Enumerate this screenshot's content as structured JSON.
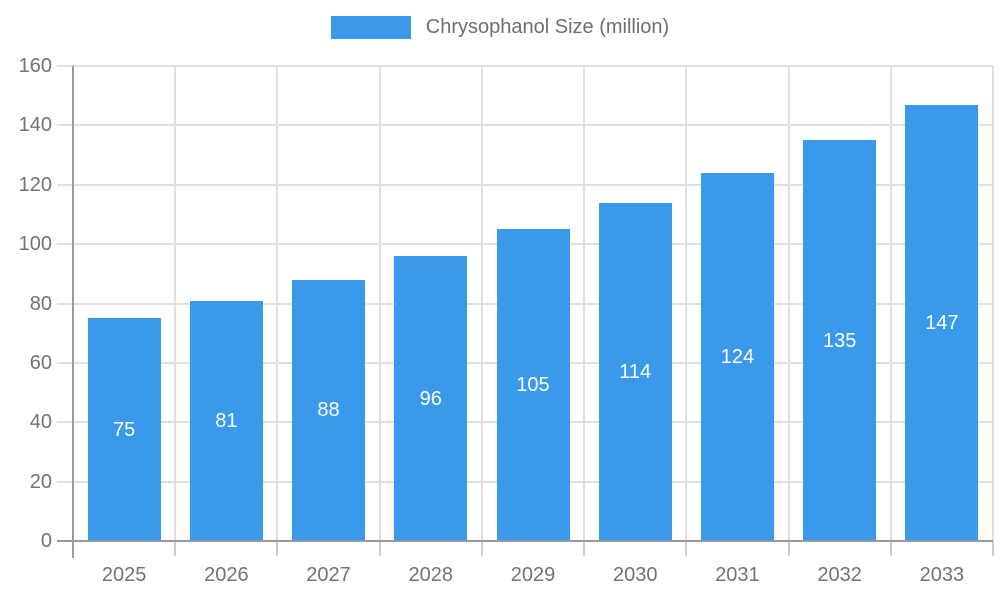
{
  "legend": {
    "label": "Chrysophanol Size (million)"
  },
  "chart_data": {
    "type": "bar",
    "title": "",
    "categories": [
      "2025",
      "2026",
      "2027",
      "2028",
      "2029",
      "2030",
      "2031",
      "2032",
      "2033"
    ],
    "series": [
      {
        "name": "Chrysophanol Size (million)",
        "color": "#3B99EC",
        "values": [
          75,
          81,
          88,
          96,
          105,
          114,
          124,
          135,
          147
        ]
      }
    ],
    "value_labels": [
      75,
      81,
      88,
      96,
      105,
      114,
      124,
      135,
      147
    ],
    "y_ticks": [
      0,
      20,
      40,
      60,
      80,
      100,
      120,
      140,
      160
    ],
    "ylim": [
      0,
      160
    ],
    "xlabel": "",
    "ylabel": "",
    "grid": true,
    "legend_position": "top",
    "value_label_position": "inside-center",
    "colors": {
      "bar": "#3B99EC",
      "grid_line": "#E0E0E0",
      "axis_line": "#999999",
      "category_tick": "#CCCCCC",
      "axis_text": "#737373",
      "legend_text": "#6E6E6E",
      "value_text": "#FFFFFF",
      "background": "#FFFFFF"
    }
  }
}
